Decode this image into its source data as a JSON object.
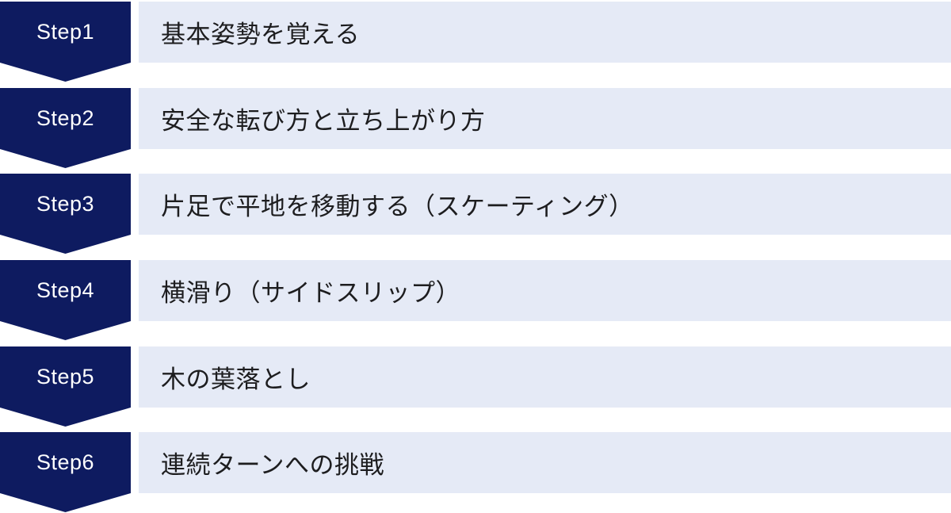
{
  "steps": [
    {
      "label": "Step1",
      "text": "基本姿勢を覚える"
    },
    {
      "label": "Step2",
      "text": "安全な転び方と立ち上がり方"
    },
    {
      "label": "Step3",
      "text": "片足で平地を移動する（スケーティング）"
    },
    {
      "label": "Step4",
      "text": "横滑り（サイドスリップ）"
    },
    {
      "label": "Step5",
      "text": "木の葉落とし"
    },
    {
      "label": "Step6",
      "text": "連続ターンへの挑戦"
    }
  ],
  "colors": {
    "badge_navy": "#0e1b60",
    "bar_light": "#e5eaf6",
    "text_dark": "#1d1d1f",
    "label_white": "#ffffff"
  }
}
